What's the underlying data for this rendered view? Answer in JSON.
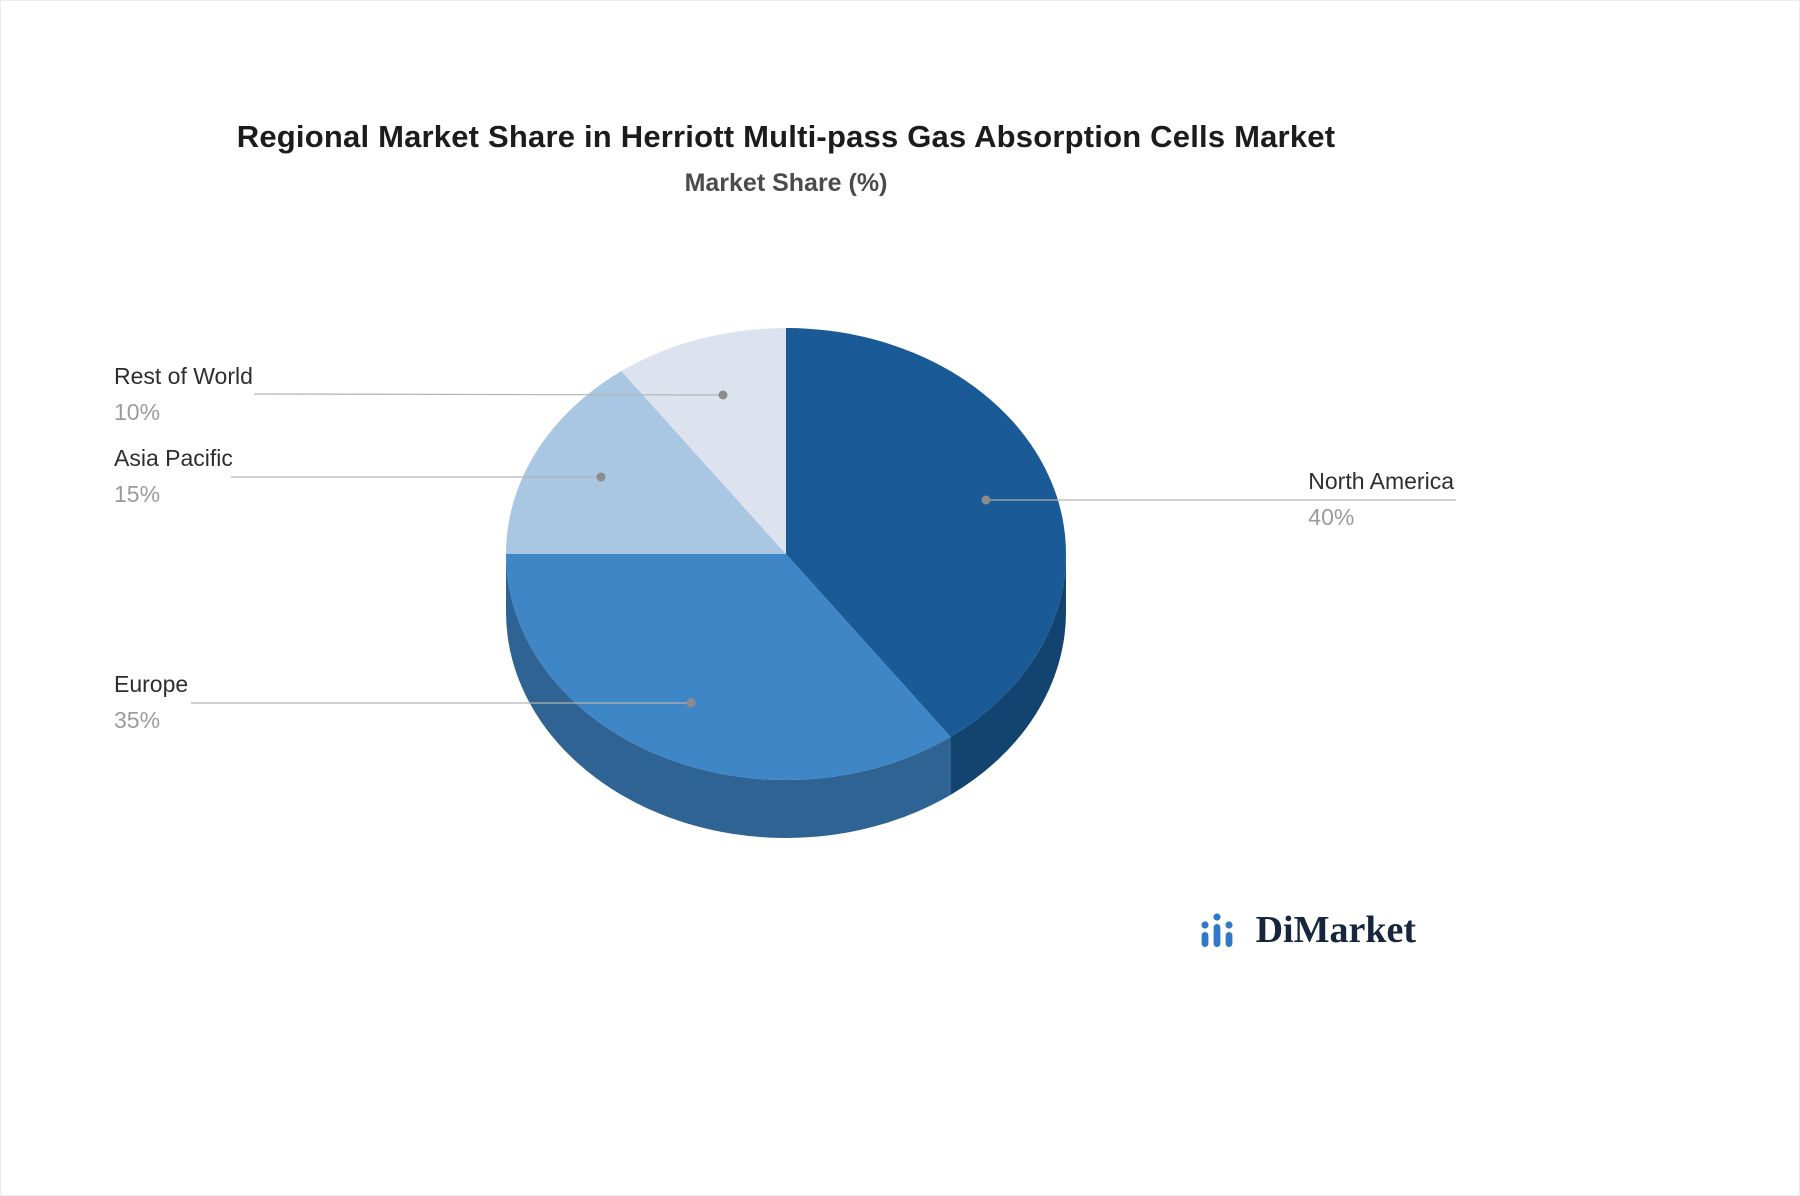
{
  "title": "Regional Market Share in Herriott Multi-pass Gas Absorption Cells Market",
  "subtitle": "Market Share (%)",
  "logo": {
    "text": "DiMarket"
  },
  "chart_data": {
    "type": "pie",
    "style": "3d",
    "title": "Regional Market Share in Herriott Multi-pass Gas Absorption Cells Market",
    "subtitle": "Market Share (%)",
    "start_angle_deg": -90,
    "direction": "clockwise",
    "value_format": "percent",
    "legend": "none",
    "label_placement": "callout-leader-lines",
    "slices": [
      {
        "label": "North America",
        "value": 40,
        "display": "40%",
        "color": "#1a5a96"
      },
      {
        "label": "Europe",
        "value": 35,
        "display": "35%",
        "color": "#3e86c6"
      },
      {
        "label": "Asia Pacific",
        "value": 15,
        "display": "15%",
        "color": "#a9c6e3"
      },
      {
        "label": "Rest of World",
        "value": 10,
        "display": "10%",
        "color": "#dde3ee"
      }
    ],
    "colors": {
      "leader_line": "#b3b3b3",
      "leader_dot": "#8c8c8c",
      "label_text": "#2e2e2e",
      "value_text": "#9b9b9b",
      "logo_accent": "#2e79c9",
      "logo_text": "#17263f"
    }
  }
}
